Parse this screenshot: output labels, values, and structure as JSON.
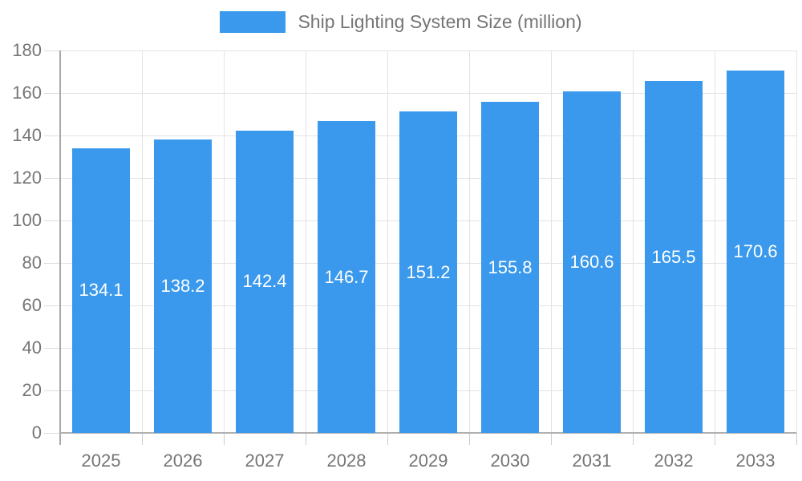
{
  "chart_data": {
    "type": "bar",
    "title": "Ship Lighting System Size (million)",
    "categories": [
      "2025",
      "2026",
      "2027",
      "2028",
      "2029",
      "2030",
      "2031",
      "2032",
      "2033"
    ],
    "values": [
      134.1,
      138.2,
      142.4,
      146.7,
      151.2,
      155.8,
      160.6,
      165.5,
      170.6
    ],
    "value_labels": [
      "134.1",
      "138.2",
      "142.4",
      "146.7",
      "151.2",
      "155.8",
      "160.6",
      "165.5",
      "170.6"
    ],
    "xlabel": "",
    "ylabel": "",
    "ylim": [
      0,
      180
    ],
    "yticks": [
      0,
      20,
      40,
      60,
      80,
      100,
      120,
      140,
      160,
      180
    ],
    "grid": true,
    "legend_position": "top"
  },
  "legend": {
    "label": "Ship Lighting System Size (million)"
  },
  "colors": {
    "bar": "#3a99ec",
    "grid": "#e3e3e3",
    "axis": "#a9a9a9",
    "baseline": "#b0b0b0",
    "ytick": "#dcdcdc",
    "xtick": "#cccccc",
    "tick_label": "#757575",
    "value_label": "#ffffff",
    "background": "#ffffff"
  }
}
